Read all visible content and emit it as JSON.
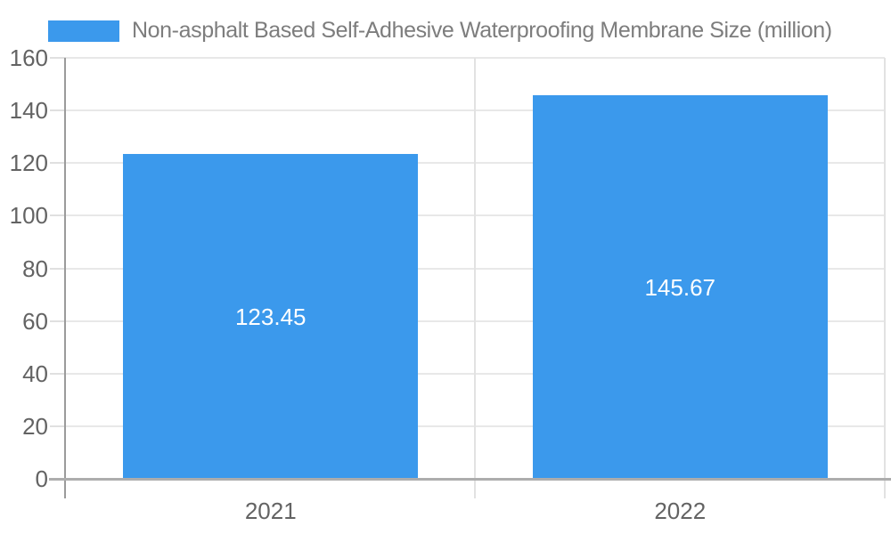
{
  "chart_data": {
    "type": "bar",
    "title": "Non-asphalt Based Self-Adhesive Waterproofing Membrane Size (million)",
    "legend": [
      "Non-asphalt Based Self-Adhesive Waterproofing Membrane Size (million)"
    ],
    "legend_position": "top-left",
    "categories": [
      "2021",
      "2022"
    ],
    "series": [
      {
        "name": "Non-asphalt Based Self-Adhesive Waterproofing Membrane Size (million)",
        "values": [
          123.45,
          145.67
        ],
        "data_labels": [
          "123.45",
          "145.67"
        ]
      }
    ],
    "xlabel": "",
    "ylabel": "",
    "ylim": [
      0,
      160
    ],
    "yticks": [
      0,
      20,
      40,
      60,
      80,
      100,
      120,
      140,
      160
    ],
    "grid": true,
    "colors": {
      "bar": "#3B99EC",
      "bar_label": "#FFFFFF",
      "gridline": "#E8E8E8",
      "vertical_gridline": "#E2E2E2",
      "y_axis_line": "#9B9B9B",
      "x_axis_line": "#ADADAD",
      "tick": "#E0E0E0",
      "axis_label": "#636363",
      "legend_label": "#7D7D7D"
    }
  }
}
